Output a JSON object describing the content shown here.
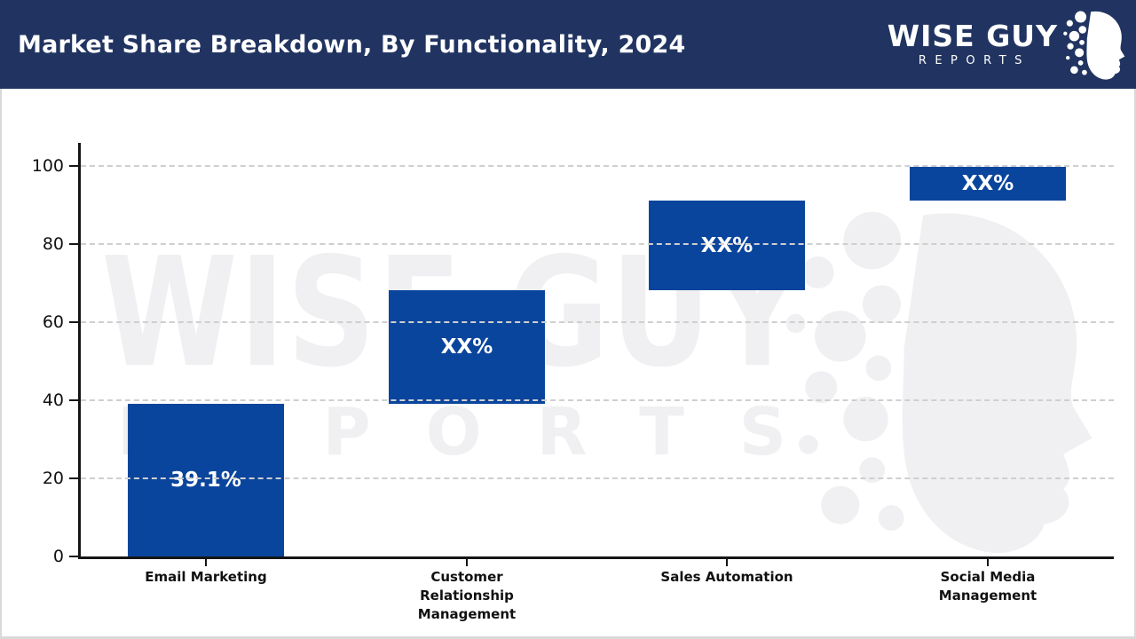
{
  "header": {
    "title": "Market Share Breakdown, By Functionality, 2024",
    "logo": {
      "brand": "WISE GUY",
      "sub": "REPORTS"
    }
  },
  "watermark": {
    "big_text": "WISE GUY",
    "small_text": "REPORTS"
  },
  "chart_data": {
    "type": "bar",
    "subtype": "floating-segment-waterfall",
    "title": "Market Share Breakdown, By Functionality, 2024",
    "categories": [
      "Email Marketing",
      "Customer Relationship Management",
      "Sales Automation",
      "Social Media Management"
    ],
    "category_label_lines": [
      [
        "Email Marketing"
      ],
      [
        "Customer",
        "Relationship",
        "Management"
      ],
      [
        "Sales Automation"
      ],
      [
        "Social Media",
        "Management"
      ]
    ],
    "bars": [
      {
        "category": "Email Marketing",
        "start": 0,
        "end": 39.1,
        "label": "39.1%"
      },
      {
        "category": "Customer Relationship Management",
        "start": 39.1,
        "end": 68,
        "label": "XX%"
      },
      {
        "category": "Sales Automation",
        "start": 68,
        "end": 91,
        "label": "XX%"
      },
      {
        "category": "Social Media Management",
        "start": 91,
        "end": 99.7,
        "label": "XX%"
      }
    ],
    "xlabel": "",
    "ylabel": "",
    "yticks": [
      0,
      20,
      40,
      60,
      80,
      100
    ],
    "ylim": [
      0,
      105
    ],
    "grid": "horizontal-dashed",
    "legend": "none",
    "bar_color": "#0a459d",
    "value_label_color": "#ffffff"
  },
  "colors": {
    "header_bg": "#213461",
    "bar_blue": "#0a459d",
    "grid": "#cfcfcf",
    "axis": "#151515",
    "watermark": "#f0f0f2",
    "page_border": "#d9d9d9"
  }
}
